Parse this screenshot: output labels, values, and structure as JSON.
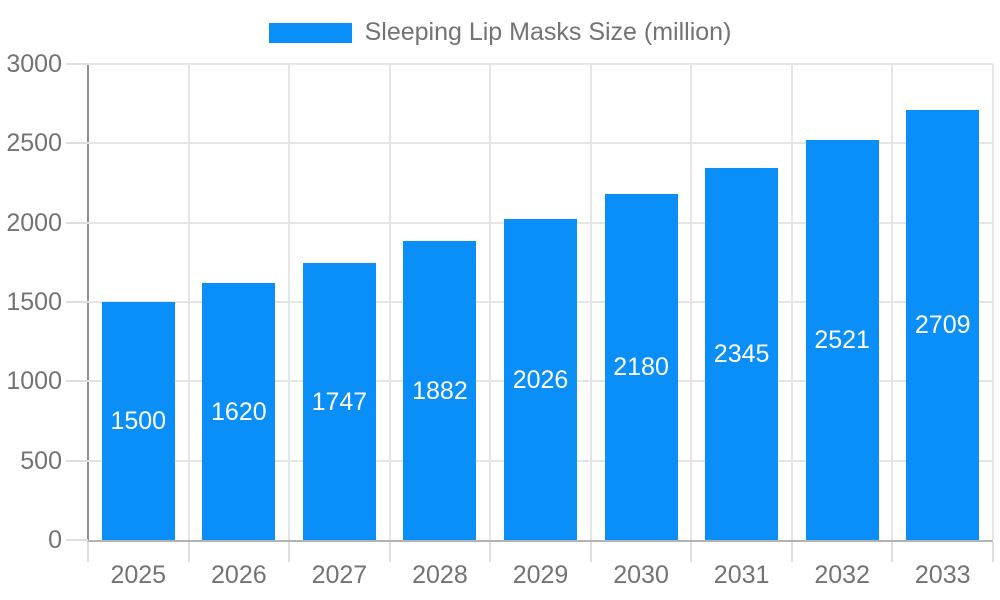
{
  "chart_data": {
    "type": "bar",
    "title": "Sleeping Lip Masks Size (million)",
    "categories": [
      "2025",
      "2026",
      "2027",
      "2028",
      "2029",
      "2030",
      "2031",
      "2032",
      "2033"
    ],
    "series": [
      {
        "name": "Sleeping Lip Masks Size (million)",
        "values": [
          1500,
          1620,
          1747,
          1882,
          2026,
          2180,
          2345,
          2521,
          2709
        ]
      }
    ],
    "xlabel": "",
    "ylabel": "",
    "ylim": [
      0,
      3000
    ],
    "yticks": [
      0,
      500,
      1000,
      1500,
      2000,
      2500,
      3000
    ],
    "grid": true,
    "legend_position": "top-center",
    "value_labels": "inside-center",
    "colors": {
      "bar": "#0a8ff9",
      "value_label": "#ffffff",
      "axis_text": "#737373",
      "gridline": "#e5e5e5",
      "tick": "#dedede",
      "y_axis_line": "#919191",
      "x_axis_line": "#b3b3b3",
      "background": "#ffffff"
    }
  }
}
